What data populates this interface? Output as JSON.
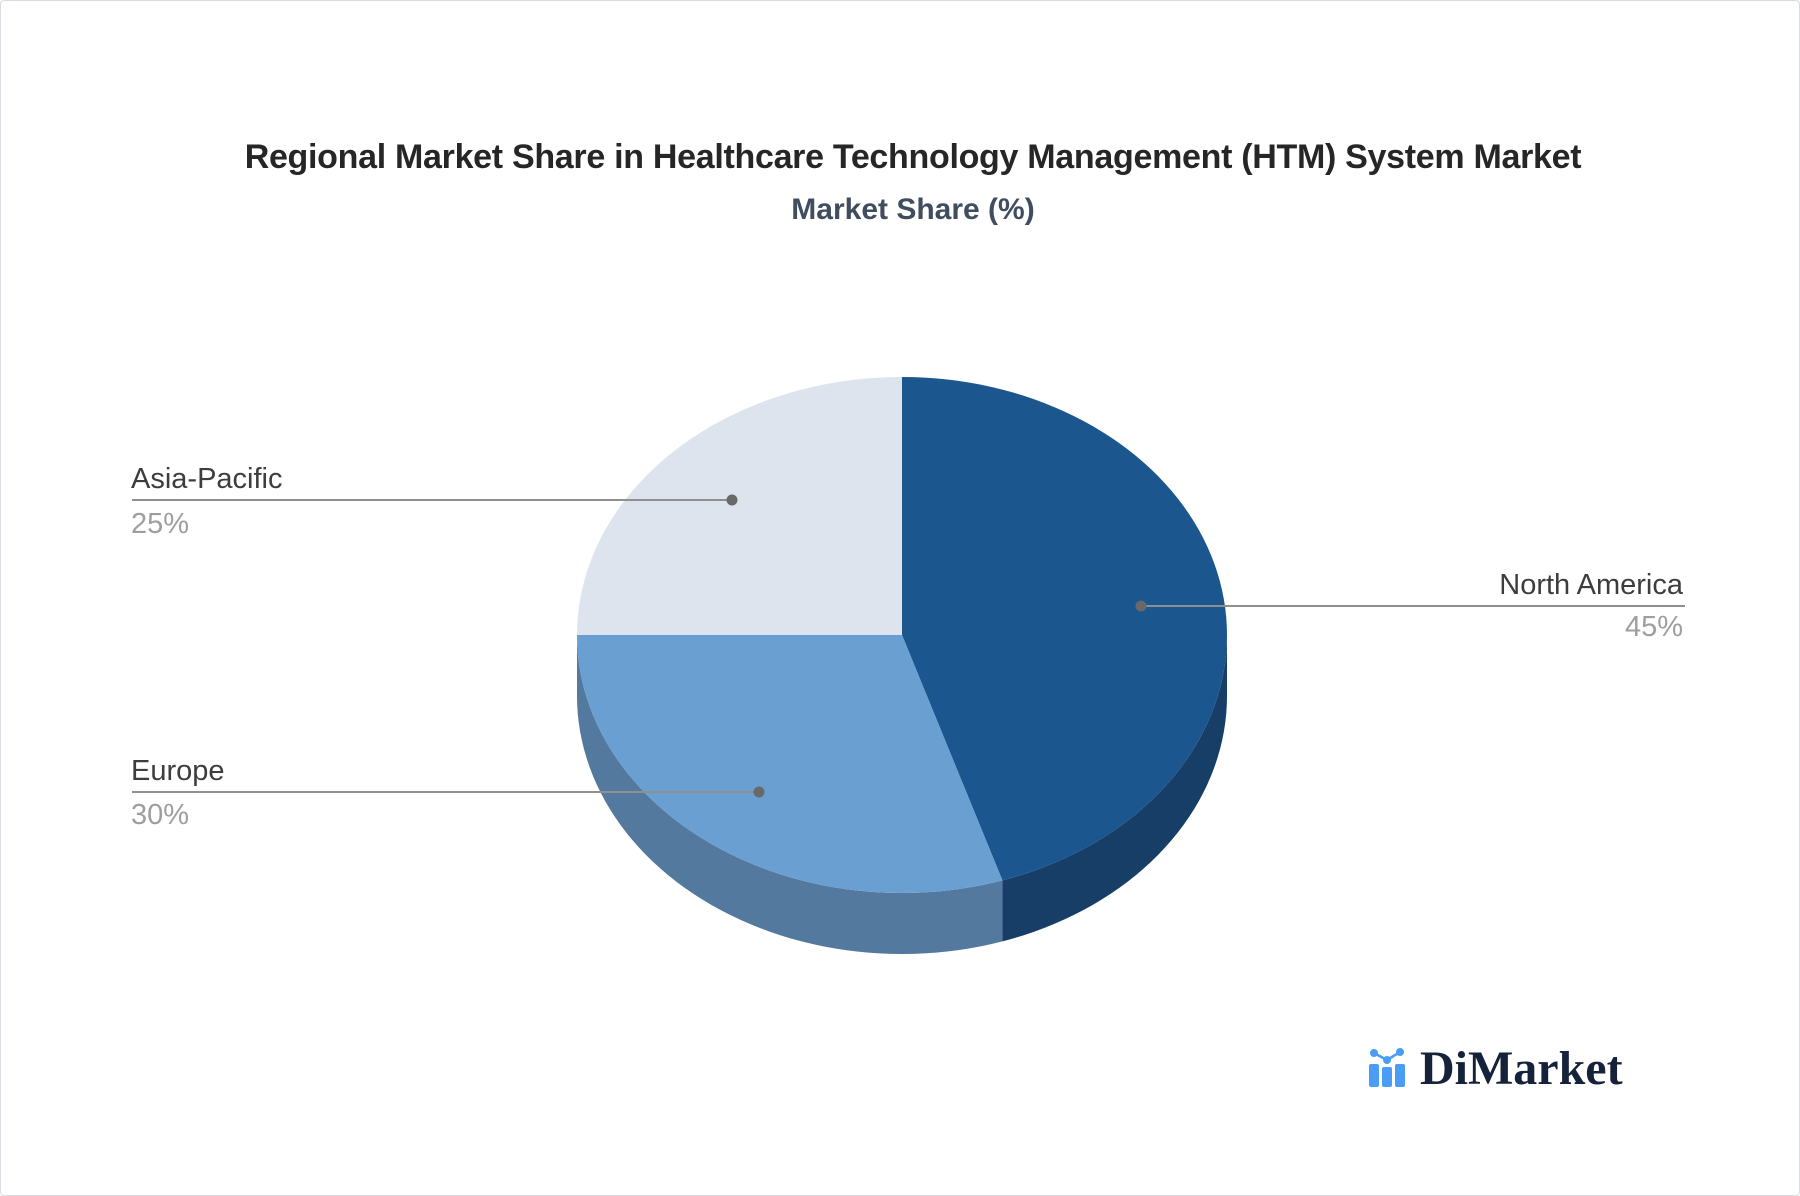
{
  "title": "Regional Market Share in Healthcare Technology Management (HTM) System Market",
  "subtitle": "Market Share (%)",
  "brand": {
    "name": "DiMarket",
    "icon": "bar-line-chart-icon",
    "text_color": "#16213a",
    "icon_color": "#4a9df5"
  },
  "chart_data": {
    "type": "pie",
    "title": "Regional Market Share in Healthcare Technology Management (HTM) System Market",
    "subtitle": "Market Share (%)",
    "unit": "%",
    "categories": [
      "North America",
      "Europe",
      "Asia-Pacific"
    ],
    "values": [
      45,
      30,
      25
    ],
    "value_labels": [
      "45%",
      "30%",
      "25%"
    ],
    "colors": [
      "#1b578e",
      "#6a9fd2",
      "#dde4ee"
    ],
    "side_colors": [
      "#163e66",
      "#54799f",
      "#b9c4d4"
    ],
    "start_angle_deg": 0,
    "direction": "clockwise",
    "effect": "3d-depth",
    "legend": "none",
    "leader_line_color": "#8f8f8f",
    "leader_dot_color": "#696969",
    "callouts": [
      {
        "category": "North America",
        "value_label": "45%",
        "side": "right"
      },
      {
        "category": "Europe",
        "value_label": "30%",
        "side": "left"
      },
      {
        "category": "Asia-Pacific",
        "value_label": "25%",
        "side": "left"
      }
    ]
  }
}
